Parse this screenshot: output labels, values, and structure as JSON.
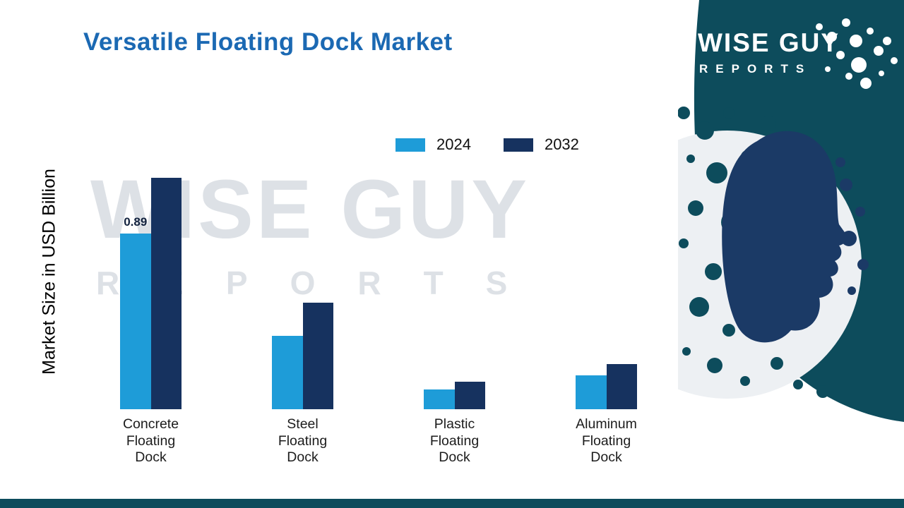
{
  "title": "Versatile Floating Dock Market",
  "brand": {
    "name_top": "WISE GUY",
    "name_bottom": "REPORTS"
  },
  "watermark": {
    "line1": "WISE GUY",
    "line2": "REPORTS"
  },
  "chart_data": {
    "type": "bar",
    "title": "Versatile Floating Dock Market",
    "xlabel": "",
    "ylabel": "Market Size in USD Billion",
    "categories": [
      "Concrete Floating Dock",
      "Steel Floating Dock",
      "Plastic Floating Dock",
      "Aluminum Floating Dock"
    ],
    "series": [
      {
        "name": "2024",
        "color": "#1e9cd8",
        "values": [
          0.89,
          0.37,
          0.1,
          0.17
        ]
      },
      {
        "name": "2032",
        "color": "#16325f",
        "values": [
          1.17,
          0.54,
          0.14,
          0.23
        ]
      }
    ],
    "data_labels": [
      {
        "category_index": 0,
        "series_index": 0,
        "text": "0.89"
      }
    ],
    "ylim": [
      0,
      1.3
    ],
    "grid": false,
    "axes_shown": false,
    "legend_position": "top-center"
  },
  "colors": {
    "title": "#1b69b3",
    "brand_bg": "#0d4c5c",
    "series_2024": "#1e9cd8",
    "series_2032": "#16325f",
    "face_silhouette": "#1b3a66",
    "watermark": "#dde1e6",
    "footer_bar": "#0d4c5c"
  }
}
